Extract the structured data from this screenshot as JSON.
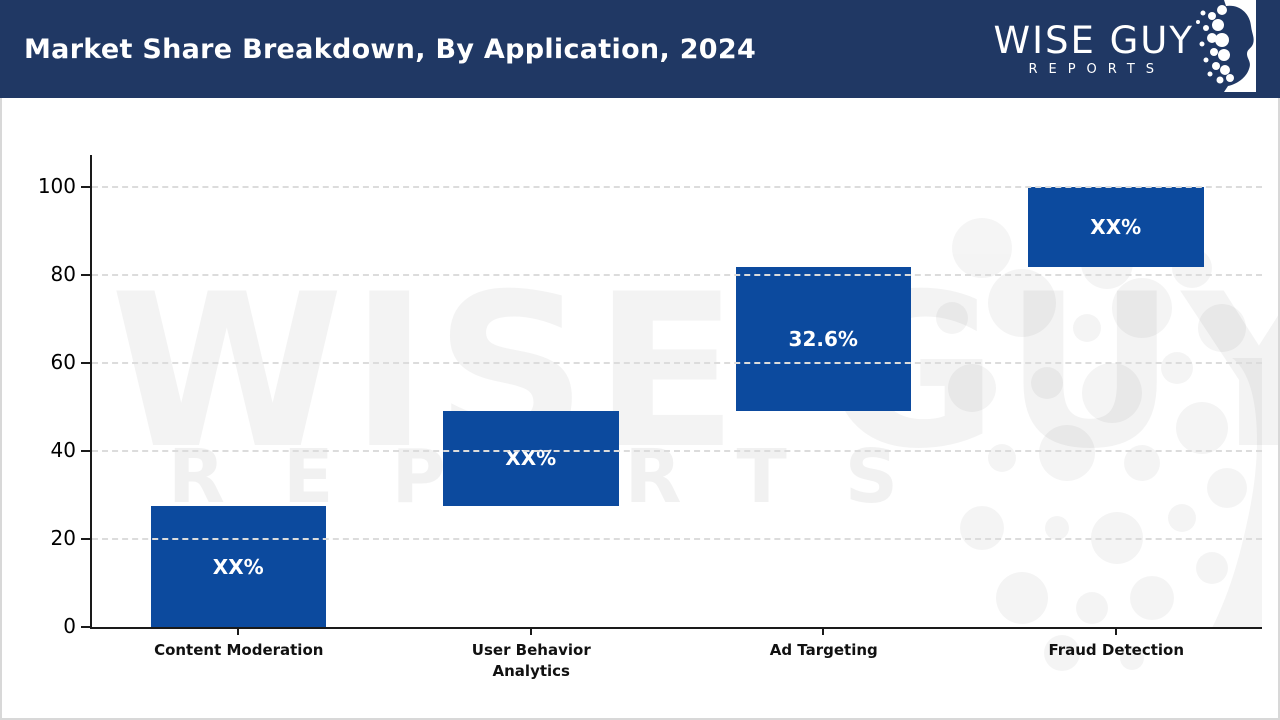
{
  "header": {
    "title": "Market Share Breakdown, By Application, 2024",
    "logo": {
      "line1": "WISE GUY",
      "line2": "REPORTS"
    }
  },
  "watermark": {
    "line1": "WISE GUY",
    "line2": "REPORTS"
  },
  "chart_data": {
    "type": "bar",
    "subtype": "waterfall",
    "title": "Market Share Breakdown, By Application, 2024",
    "categories": [
      "Content Moderation",
      "User Behavior Analytics",
      "Ad Targeting",
      "Fraud Detection"
    ],
    "segments": [
      {
        "category": "Content Moderation",
        "start": 0,
        "end": 27.5,
        "value": 27.5,
        "value_label": "XX%"
      },
      {
        "category": "User Behavior Analytics",
        "start": 27.5,
        "end": 49.2,
        "value": 21.7,
        "value_label": "XX%"
      },
      {
        "category": "Ad Targeting",
        "start": 49.2,
        "end": 81.8,
        "value": 32.6,
        "value_label": "32.6%"
      },
      {
        "category": "Fraud Detection",
        "start": 81.8,
        "end": 100,
        "value": 18.2,
        "value_label": "XX%"
      }
    ],
    "ylim": [
      0,
      100
    ],
    "yticks": [
      0,
      20,
      40,
      60,
      80,
      100
    ],
    "xlabel": "",
    "ylabel": "",
    "grid": "horizontal-dashed",
    "legend": "none",
    "bar_color": "#0c4a9e",
    "bar_label_color": "#ffffff",
    "axis_color": "#1a1a1a",
    "gridline_color": "#dcdcdc",
    "header_color": "#203864"
  }
}
